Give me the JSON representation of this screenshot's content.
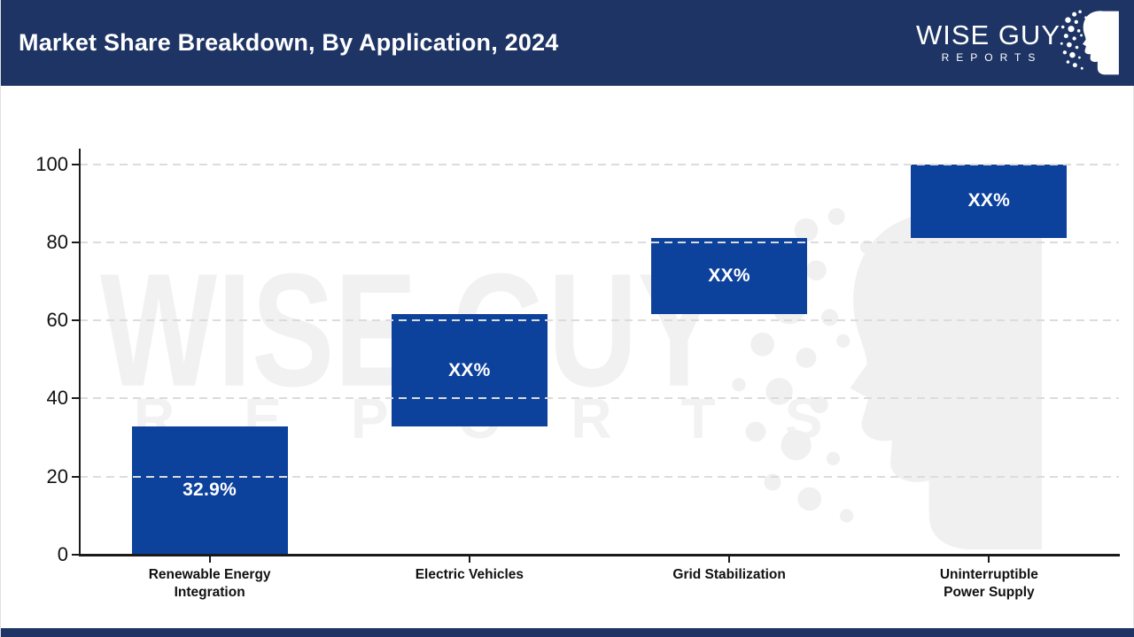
{
  "header": {
    "title": "Market Share Breakdown, By Application, 2024",
    "bg_color": "#1e3465",
    "logo_line1": "WISE GUY",
    "logo_line2": "REPORTS"
  },
  "watermark": {
    "line1": "WISE GUY",
    "line2": "REPORTS"
  },
  "chart_data": {
    "type": "bar",
    "variant": "waterfall-stacked-to-100",
    "title": "Market Share Breakdown, By Application, 2024",
    "ylabel": "",
    "xlabel": "",
    "ylim": [
      0,
      100
    ],
    "yticks": [
      0,
      20,
      40,
      60,
      80,
      100
    ],
    "grid": "dashed-horizontal",
    "bar_color": "#0c419c",
    "categories": [
      "Renewable Energy Integration",
      "Electric Vehicles",
      "Grid Stabilization",
      "Uninterruptible Power Supply"
    ],
    "category_label_lines": [
      [
        "Renewable Energy",
        "Integration"
      ],
      [
        "Electric Vehicles"
      ],
      [
        "Grid Stabilization"
      ],
      [
        "Uninterruptible",
        "Power Supply"
      ]
    ],
    "segments": [
      {
        "category": "Renewable Energy Integration",
        "start": 0,
        "end": 32.9,
        "label": "32.9%"
      },
      {
        "category": "Electric Vehicles",
        "start": 32.9,
        "end": 61.5,
        "label": "XX%"
      },
      {
        "category": "Grid Stabilization",
        "start": 61.5,
        "end": 81.0,
        "label": "XX%"
      },
      {
        "category": "Uninterruptible Power Supply",
        "start": 81.0,
        "end": 100,
        "label": "XX%"
      }
    ]
  }
}
